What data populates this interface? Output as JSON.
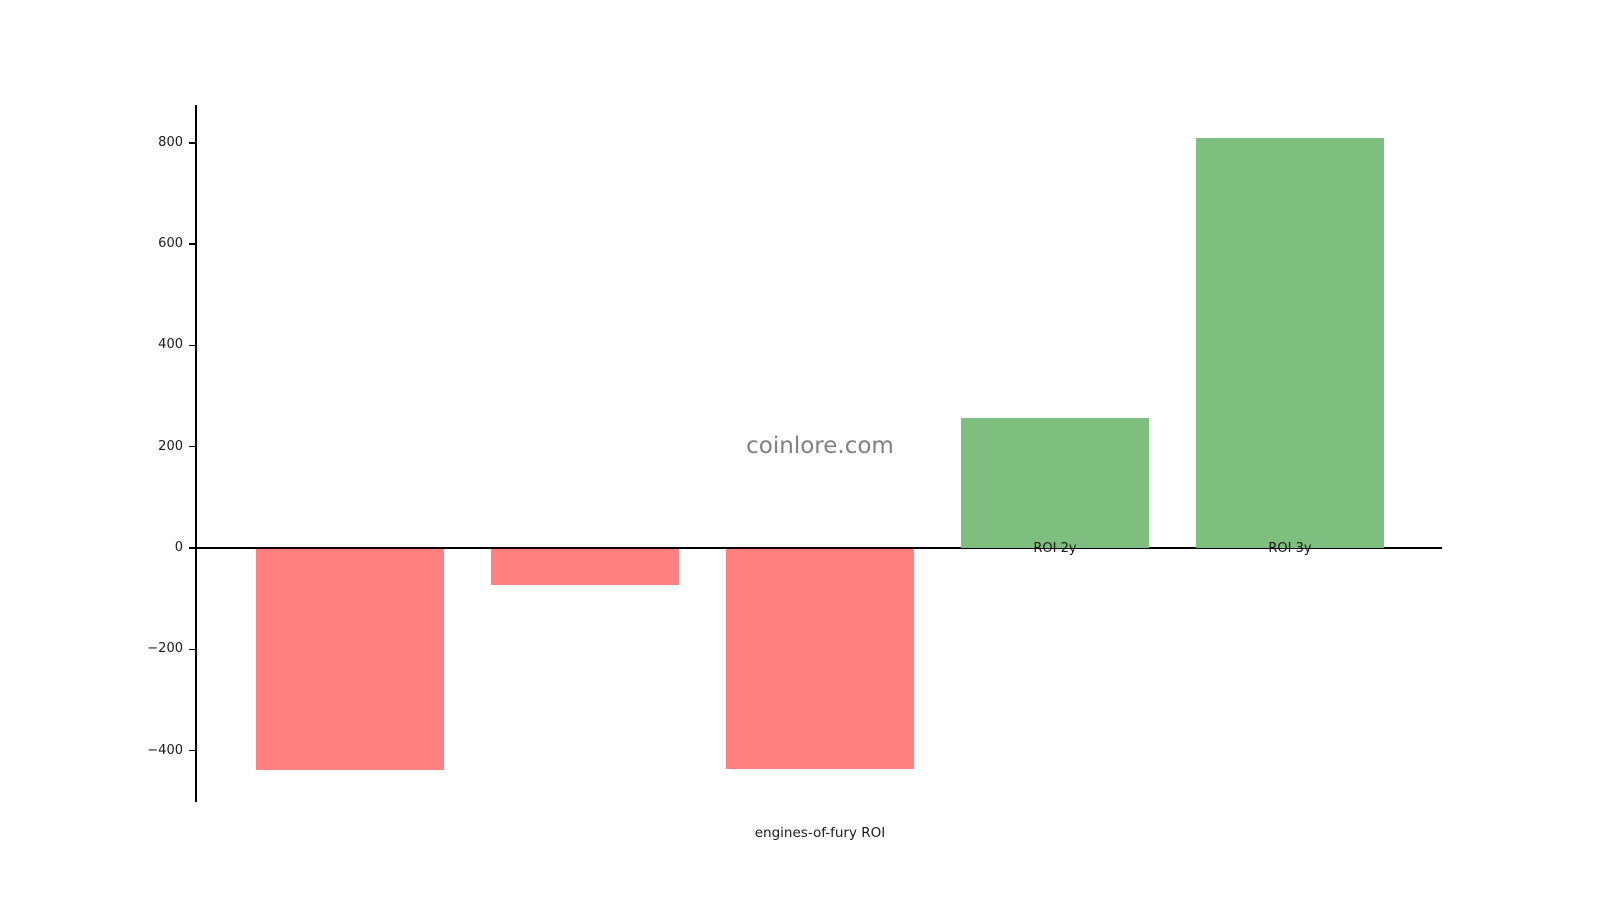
{
  "watermark": {
    "text": "coinlore.com",
    "color": "#808080"
  },
  "chart_data": {
    "type": "bar",
    "title": "",
    "xlabel": "engines-of-fury ROI",
    "ylabel": "",
    "categories": [
      "",
      "",
      "",
      "ROI 2y",
      "ROI 3y"
    ],
    "values": [
      -436,
      -72,
      -434,
      256,
      810
    ],
    "bar_colors": [
      "#ff8080",
      "#ff8080",
      "#ff8080",
      "#7ebe7e",
      "#7ebe7e"
    ],
    "colors": {
      "negative": "#ff8080",
      "positive": "#7ebe7e",
      "axis": "#000000",
      "text": "#1a1a1a"
    },
    "yticks": [
      800,
      600,
      400,
      200,
      0,
      -200,
      -400
    ],
    "ylim": [
      -501,
      875
    ],
    "grid": false,
    "legend_position": "none"
  }
}
